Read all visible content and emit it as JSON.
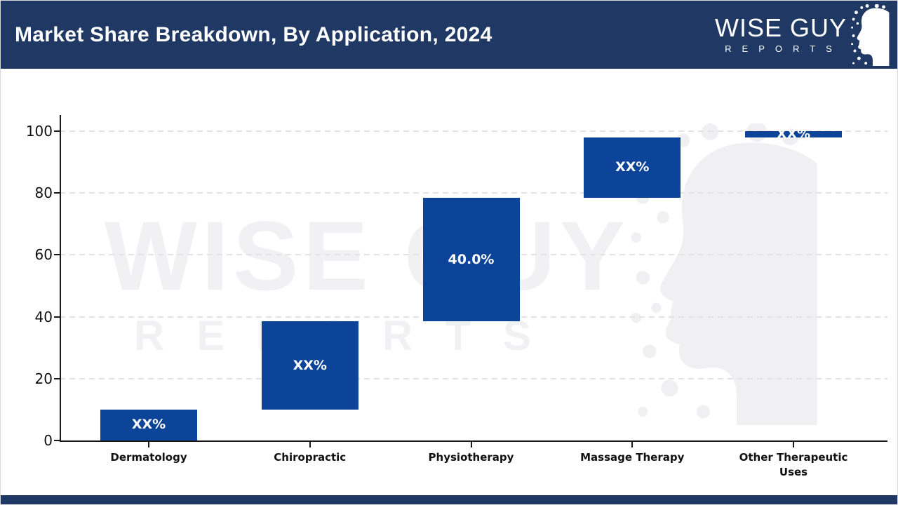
{
  "header": {
    "title": "Market Share Breakdown, By Application, 2024",
    "bg_color": "#203864",
    "logo": {
      "line1": "WISE GUY",
      "line2": "REPORTS"
    }
  },
  "watermark": {
    "line1": "WISE GUY",
    "line2": "REPORTS"
  },
  "footer": {
    "bg_color": "#203864"
  },
  "chart_data": {
    "type": "bar",
    "subtype": "waterfall",
    "title": "Market Share Breakdown, By Application, 2024",
    "xlabel": "",
    "ylabel": "",
    "categories": [
      "Dermatology",
      "Chiropractic",
      "Physiotherapy",
      "Massage Therapy",
      "Other Therapeutic Uses"
    ],
    "segments": [
      {
        "category": "Dermatology",
        "start": 0,
        "end": 10,
        "value": 10,
        "label": "XX%"
      },
      {
        "category": "Chiropractic",
        "start": 10,
        "end": 38.5,
        "value": 28.5,
        "label": "XX%"
      },
      {
        "category": "Physiotherapy",
        "start": 38.5,
        "end": 78.5,
        "value": 40.0,
        "label": "40.0%"
      },
      {
        "category": "Massage Therapy",
        "start": 78.5,
        "end": 98,
        "value": 19.5,
        "label": "XX%"
      },
      {
        "category": "Other Therapeutic Uses",
        "start": 98,
        "end": 100,
        "value": 2,
        "label": "XX%"
      }
    ],
    "y_ticks": [
      0,
      20,
      40,
      60,
      80,
      100
    ],
    "ylim": [
      0,
      105
    ],
    "grid": "horizontal dashed",
    "legend": "none",
    "bar_color": "#0c4499",
    "label_color": "#ffffff",
    "axis_color": "#1a1a1a",
    "gridline_color": "#e3e3e3"
  }
}
